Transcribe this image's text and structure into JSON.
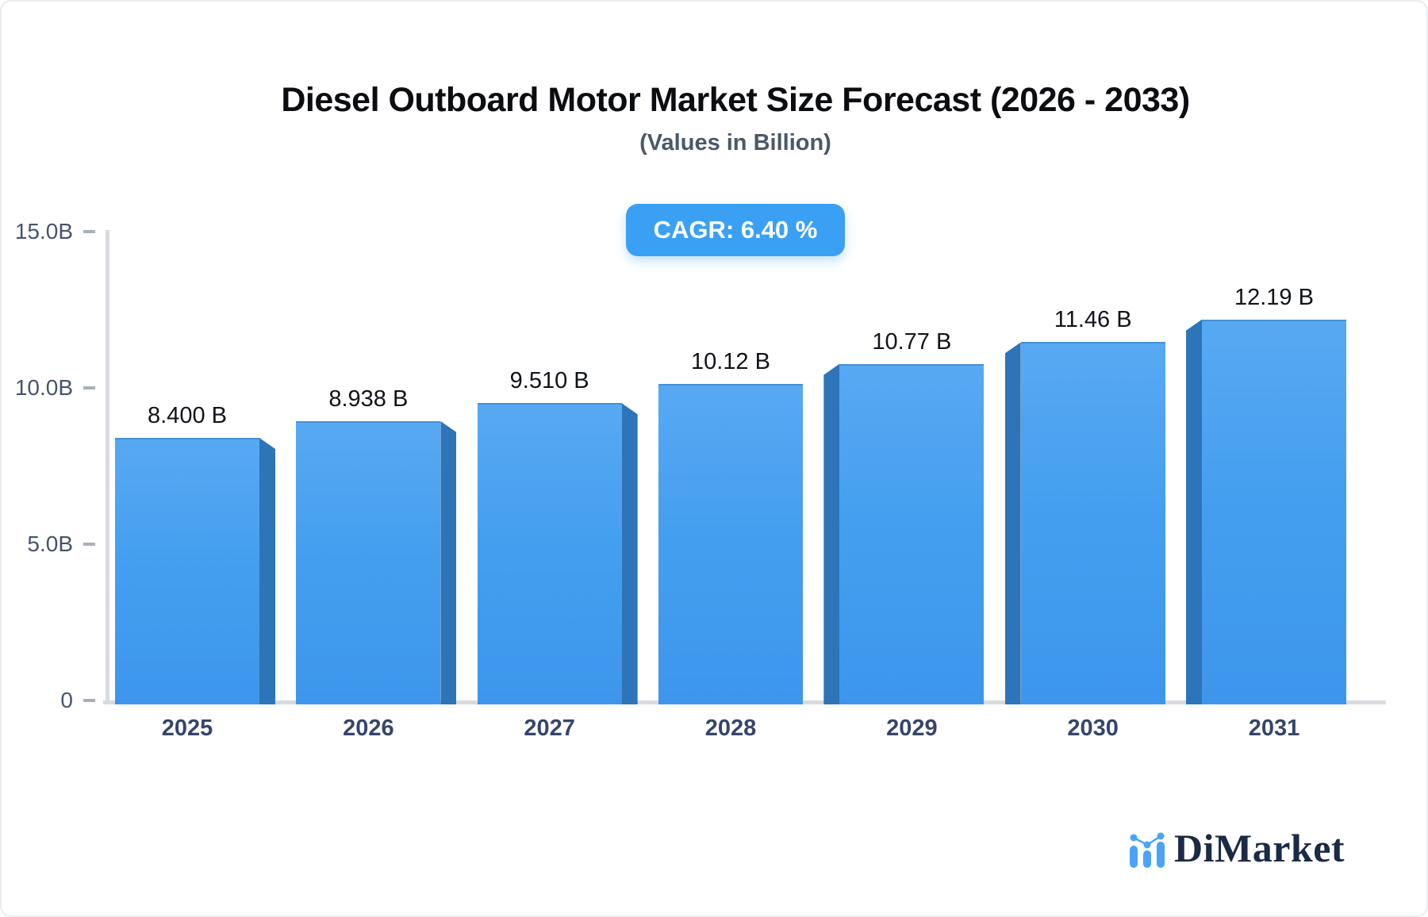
{
  "header": {
    "badge_label": "CAGR: 6.40 %"
  },
  "chart_data": {
    "type": "bar",
    "title": "Diesel Outboard Motor Market Size Forecast (2026 - 2033)",
    "subtitle": "(Values in Billion)",
    "categories": [
      "2025",
      "2026",
      "2027",
      "2028",
      "2029",
      "2030",
      "2031"
    ],
    "values": [
      8.4,
      8.938,
      9.51,
      10.12,
      10.77,
      11.46,
      12.19
    ],
    "value_labels": [
      "8.400 B",
      "8.938 B",
      "9.510 B",
      "10.12 B",
      "10.77 B",
      "11.46 B",
      "12.19 B"
    ],
    "xlabel": "",
    "ylabel": "",
    "ylim": [
      0,
      15
    ],
    "yticks": [
      {
        "label": "15.0B",
        "value": 15
      },
      {
        "label": "10.0B",
        "value": 10
      },
      {
        "label": "5.0B",
        "value": 5
      },
      {
        "label": "0",
        "value": 0
      }
    ],
    "grid": "off",
    "legend": "none",
    "bar_color": "#459FF0",
    "bar_side_color": "#2D74B8",
    "badge_color": "#3AA0F4"
  },
  "footer": {
    "brand": "DiMarket"
  }
}
